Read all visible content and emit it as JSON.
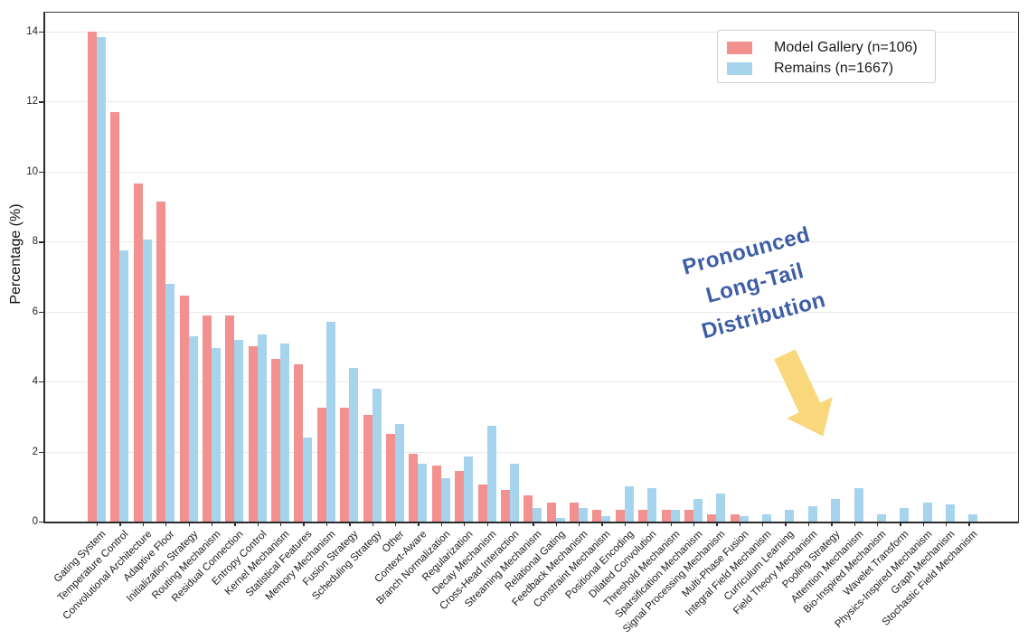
{
  "chart_data": {
    "type": "bar",
    "title": "",
    "xlabel": "",
    "ylabel": "Percentage (%)",
    "ylim": [
      0,
      14
    ],
    "yticks": [
      0,
      2,
      4,
      6,
      8,
      10,
      12,
      14
    ],
    "grid": "horizontal-light",
    "legend_position": "upper-right",
    "categories": [
      "Gating System",
      "Temperature Control",
      "Convolutional Architecture",
      "Adaptive Floor",
      "Initialization Strategy",
      "Routing Mechanism",
      "Residual Connection",
      "Entropy Control",
      "Kernel Mechanism",
      "Statistical Features",
      "Memory Mechanism",
      "Fusion Strategy",
      "Scheduling Strategy",
      "Other",
      "Context-Aware",
      "Branch Normalization",
      "Regularization",
      "Decay Mechanism",
      "Cross-Head Interaction",
      "Streaming Mechanism",
      "Relational Gating",
      "Feedback Mechanism",
      "Constraint Mechanism",
      "Positional Encoding",
      "Dilated Convolution",
      "Threshold Mechanism",
      "Sparsification Mechanism",
      "Signal Processing Mechanism",
      "Multi-Phase Fusion",
      "Integral Field Mechanism",
      "Curriculum Learning",
      "Field Theory Mechanism",
      "Pooling Strategy",
      "Attention Mechanism",
      "Bio-Inspired Mechanism",
      "Wavelet Transform",
      "Physics-Inspired Mechanism",
      "Graph Mechanism",
      "Stochastic Field Mechanism"
    ],
    "series": [
      {
        "name": "Model Gallery (n=106)",
        "color": "#f29190",
        "values": [
          14.0,
          11.7,
          9.65,
          9.15,
          6.45,
          5.9,
          5.9,
          5.0,
          4.65,
          4.5,
          3.25,
          3.25,
          3.05,
          2.5,
          1.95,
          1.6,
          1.45,
          1.05,
          0.9,
          0.75,
          0.55,
          0.55,
          0.35,
          0.35,
          0.35,
          0.35,
          0.35,
          0.2,
          0.2,
          0,
          0,
          0,
          0,
          0,
          0,
          0,
          0,
          0,
          0
        ]
      },
      {
        "name": "Remains (n=1667)",
        "color": "#a6d4ec",
        "values": [
          13.85,
          7.75,
          8.05,
          6.8,
          5.3,
          4.95,
          5.2,
          5.35,
          5.1,
          2.4,
          5.7,
          4.4,
          3.8,
          2.8,
          1.65,
          1.25,
          1.85,
          2.75,
          1.65,
          0.4,
          0.1,
          0.4,
          0.15,
          1.0,
          0.95,
          0.35,
          0.65,
          0.8,
          0.15,
          0.2,
          0.35,
          0.45,
          0.65,
          0.95,
          0.2,
          0.4,
          0.55,
          0.5,
          0.2
        ]
      }
    ],
    "annotation": {
      "text_lines": [
        "Pronounced",
        "Long-Tail",
        "Distribution"
      ],
      "text_color": "#3d5ea6",
      "arrow_color": "#f9d77d"
    }
  }
}
